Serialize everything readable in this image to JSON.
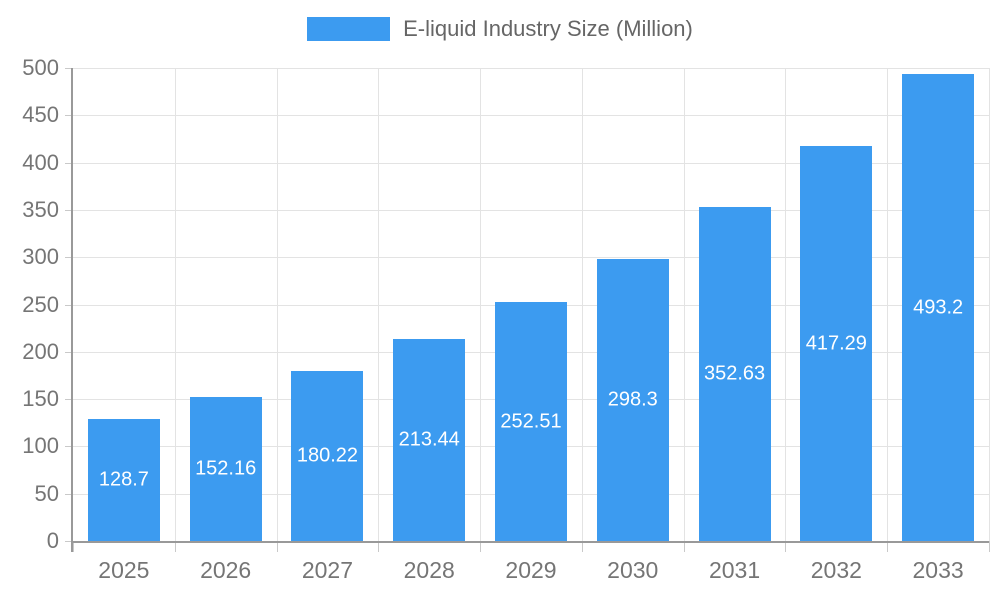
{
  "chart_data": {
    "type": "bar",
    "title": "E-liquid Industry Size (Million)",
    "categories": [
      "2025",
      "2026",
      "2027",
      "2028",
      "2029",
      "2030",
      "2031",
      "2032",
      "2033"
    ],
    "values": [
      128.7,
      152.16,
      180.22,
      213.44,
      252.51,
      298.3,
      352.63,
      417.29,
      493.2
    ],
    "value_labels": [
      "128.7",
      "152.16",
      "180.22",
      "213.44",
      "252.51",
      "298.3",
      "352.63",
      "417.29",
      "493.2"
    ],
    "xlabel": "",
    "ylabel": "",
    "ylim": [
      0,
      500
    ],
    "yticks": [
      0,
      50,
      100,
      150,
      200,
      250,
      300,
      350,
      400,
      450,
      500
    ],
    "grid": true,
    "legend_position": "top-center"
  },
  "colors": {
    "bar": "#3C9BF0",
    "grid": "#E3E3E3",
    "axis": "#999999",
    "tick": "#C9C9C9",
    "axis_label": "#757575",
    "legend_text": "#666666",
    "value_label": "#FFFFFF",
    "background": "#FFFFFF"
  }
}
